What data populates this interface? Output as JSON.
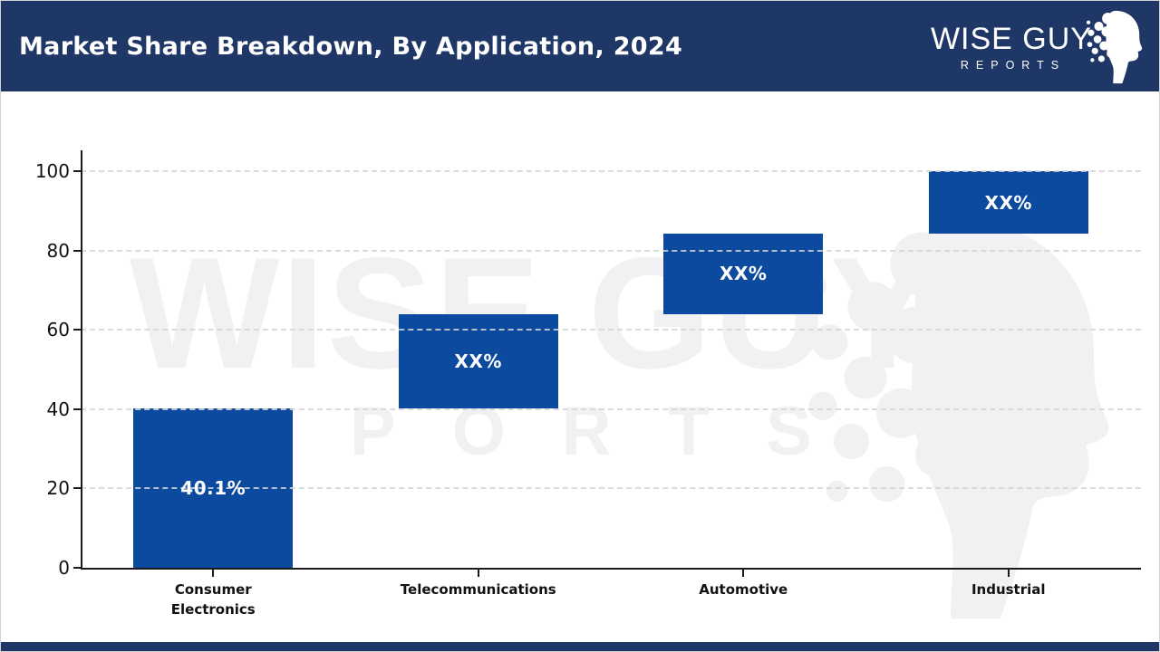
{
  "header": {
    "title": "Market Share Breakdown, By Application, 2024",
    "bg_color": "#1f3767",
    "logo": {
      "line1": "WISE GUY",
      "line2": "REPORTS"
    }
  },
  "watermark": {
    "line1": "WISE GUY",
    "line2": "PORTS"
  },
  "footer": {
    "bg_color": "#1f3767"
  },
  "chart_data": {
    "type": "bar",
    "subtype": "floating-waterfall",
    "title": "Market Share Breakdown, By Application, 2024",
    "categories": [
      "Consumer\nElectronics",
      "Telecommunications",
      "Automotive",
      "Industrial"
    ],
    "segments": [
      {
        "category": "Consumer Electronics",
        "start": 0,
        "end": 40.1,
        "label": "40.1%"
      },
      {
        "category": "Telecommunications",
        "start": 40.1,
        "end": 64,
        "label": "XX%"
      },
      {
        "category": "Automotive",
        "start": 64,
        "end": 84.2,
        "label": "XX%"
      },
      {
        "category": "Industrial",
        "start": 84.2,
        "end": 100,
        "label": "XX%"
      }
    ],
    "ylim": [
      0,
      100
    ],
    "yticks": [
      0,
      20,
      40,
      60,
      80,
      100
    ],
    "grid": "horizontal-dashed",
    "legend": "none",
    "bar_color": "#0b4a9e",
    "bar_label_color": "#ffffff",
    "axis_color": "#1a1a1a",
    "gridline_color": "#d5d5d5"
  }
}
